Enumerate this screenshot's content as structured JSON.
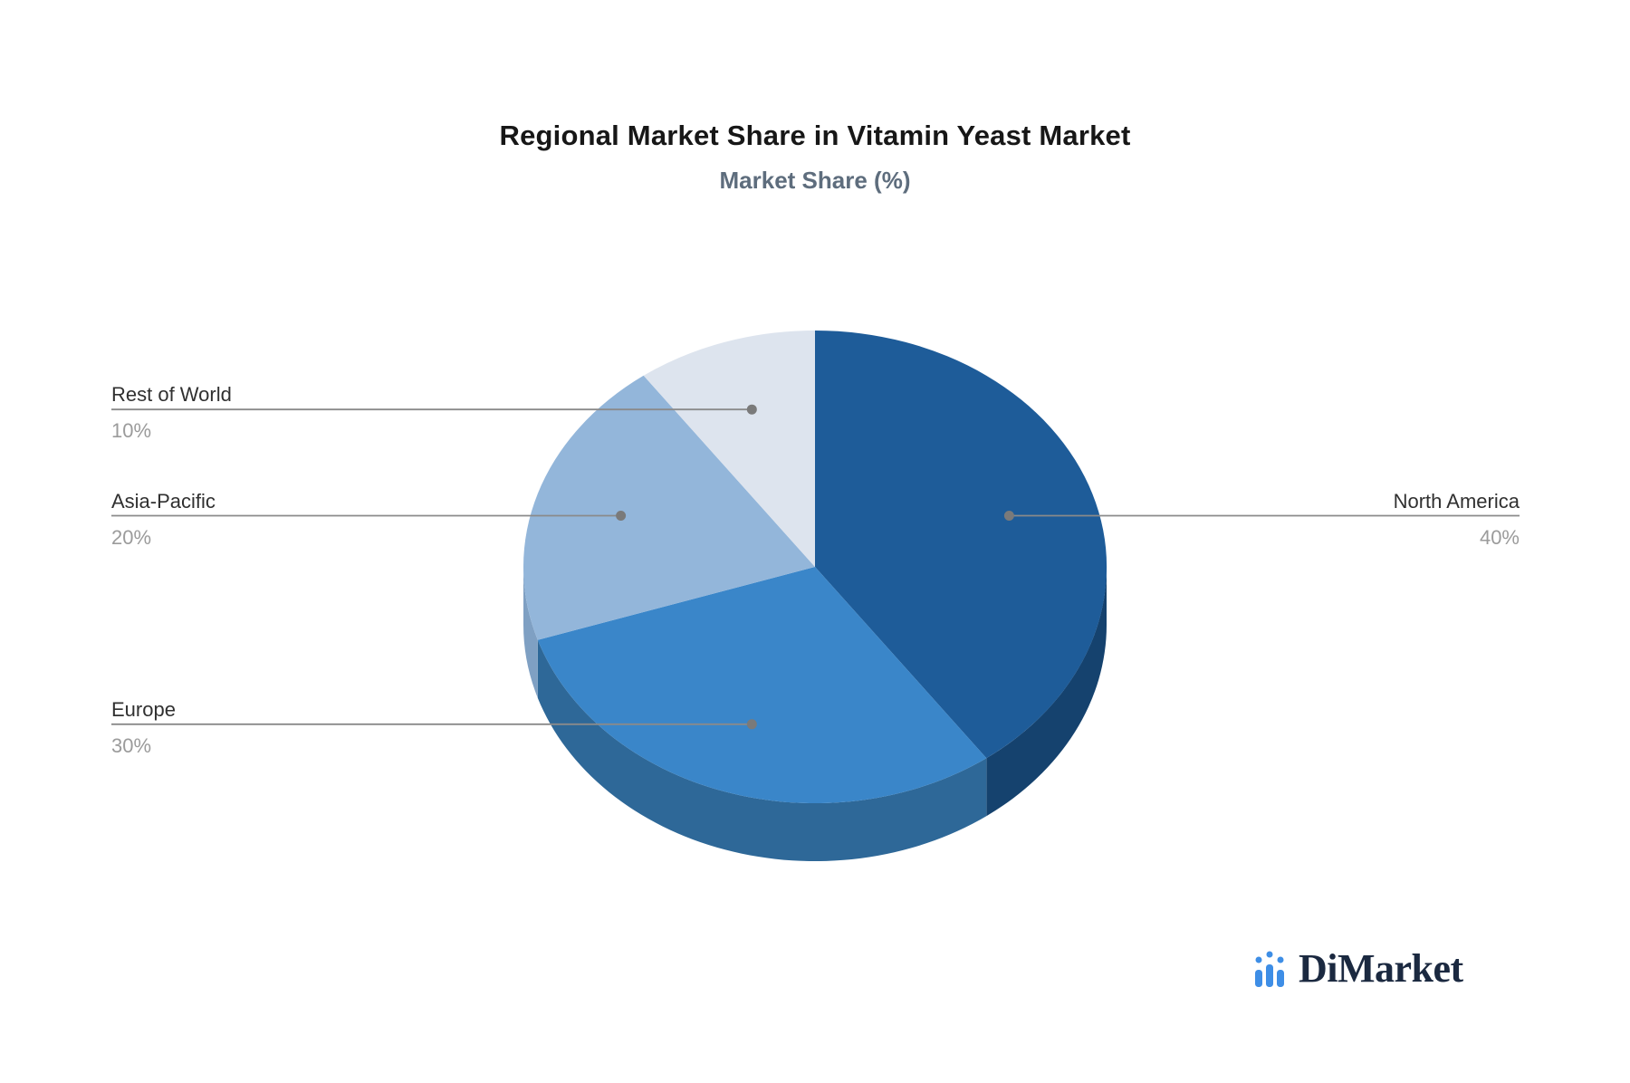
{
  "header": {
    "title": "Regional Market Share in Vitamin Yeast Market",
    "subtitle": "Market Share (%)"
  },
  "chart_data": {
    "type": "pie",
    "title": "Regional Market Share in Vitamin Yeast Market",
    "subtitle": "Market Share (%)",
    "unit": "%",
    "start_angle_deg": 0,
    "direction": "clockwise",
    "legend_position": "callout-labels",
    "style": "3d-pie",
    "segments": [
      {
        "label": "North America",
        "value": 40,
        "pct_label": "40%",
        "color": "#1e5c99",
        "side_color": "#15426e"
      },
      {
        "label": "Europe",
        "value": 30,
        "pct_label": "30%",
        "color": "#3a86c9",
        "side_color": "#2e6898"
      },
      {
        "label": "Asia-Pacific",
        "value": 20,
        "pct_label": "20%",
        "color": "#93b6da",
        "side_color": "#7fa0c3"
      },
      {
        "label": "Rest of World",
        "value": 10,
        "pct_label": "10%",
        "color": "#dde4ee",
        "side_color": "#b9c6d8"
      }
    ]
  },
  "callouts": {
    "line_color": "#8a8a8a",
    "dot_color": "#7a7a7a",
    "label_color": "#303030",
    "pct_color": "#9b9b9b"
  },
  "branding": {
    "name": "DiMarket",
    "text_color": "#1b2940",
    "icon": "bar-chart-icon",
    "icon_color": "#3e8ee6"
  }
}
